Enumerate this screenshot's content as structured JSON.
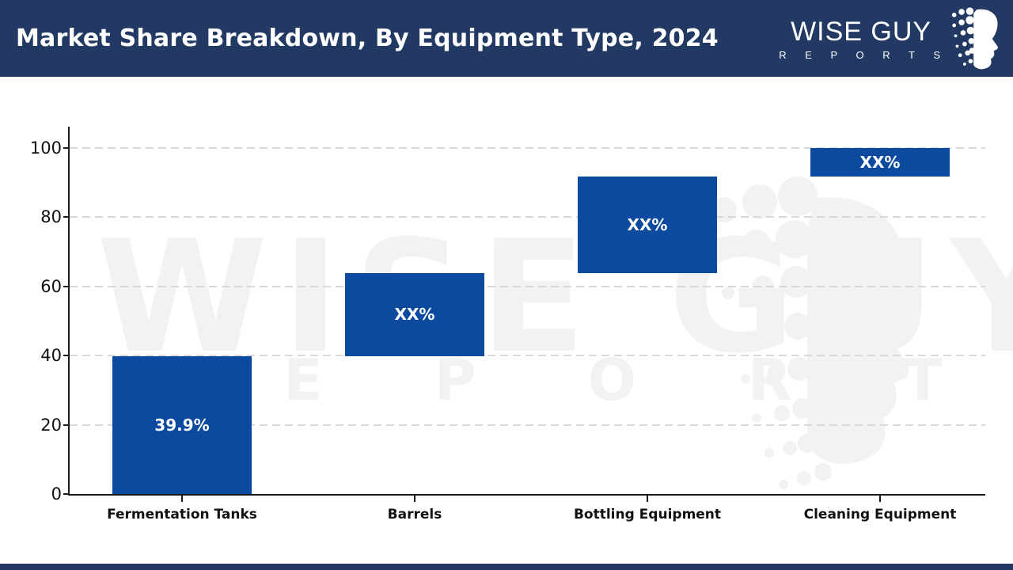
{
  "header": {
    "title": "Market Share Breakdown, By Equipment Type, 2024",
    "logo": {
      "line1": "WISE GUY",
      "line2": "R E P O R T S"
    }
  },
  "watermark": {
    "line1": "WISE GUY",
    "line2": "R E P O R T S"
  },
  "colors": {
    "header_bg": "#213963",
    "bar": "#0b4a9e",
    "grid": "#d9d9d9",
    "bar_label": "#ffffff",
    "watermark": "#f2f2f4",
    "axis": "#1a1a1a"
  },
  "chart_data": {
    "type": "bar",
    "subtype": "waterfall",
    "title": "Market Share Breakdown, By Equipment Type, 2024",
    "categories": [
      "Fermentation Tanks",
      "Barrels",
      "Bottling Equipment",
      "Cleaning Equipment"
    ],
    "bars": [
      {
        "category": "Fermentation Tanks",
        "base": 0,
        "top": 39.9,
        "label": "39.9%"
      },
      {
        "category": "Barrels",
        "base": 39.9,
        "top": 63.8,
        "label": "XX%"
      },
      {
        "category": "Bottling Equipment",
        "base": 63.8,
        "top": 91.8,
        "label": "XX%"
      },
      {
        "category": "Cleaning Equipment",
        "base": 91.8,
        "top": 100,
        "label": "XX%"
      }
    ],
    "yticks": [
      0,
      20,
      40,
      60,
      80,
      100
    ],
    "ylim": [
      0,
      105
    ],
    "xlabel": "",
    "ylabel": "",
    "grid": "horizontal dashed",
    "legend": "none",
    "bar_color": "#0b4a9e",
    "label_color": "#ffffff"
  }
}
